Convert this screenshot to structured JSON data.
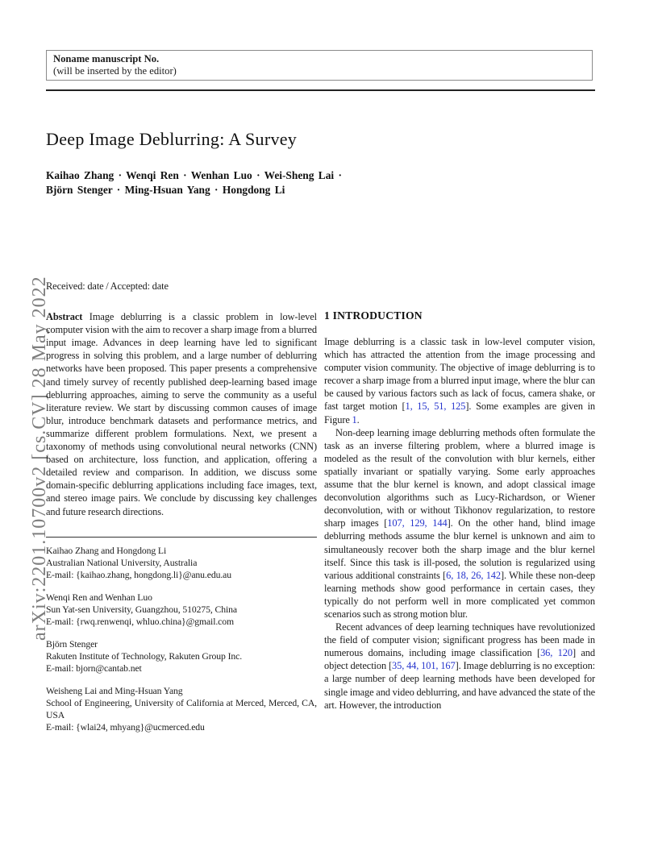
{
  "watermark": "arXiv:2201.10700v2 [cs.CV] 28 May 2022",
  "header_box": {
    "line1": "Noname manuscript No.",
    "line2": "(will be inserted by the editor)"
  },
  "title": "Deep Image Deblurring: A Survey",
  "author_lines": [
    "Kaihao Zhang · Wenqi Ren · Wenhan Luo · Wei-Sheng Lai ·",
    "Björn Stenger · Ming-Hsuan Yang · Hongdong Li"
  ],
  "received": "Received: date / Accepted: date",
  "abstract_paras": [
    [
      {
        "t": "Abstract",
        "s": "b"
      },
      {
        "t": " Image deblurring is a classic problem in low-level computer vision with the aim to recover a sharp image from a blurred input image. Advances in deep learning have led to significant progress in solving this problem, and a large number of deblurring networks have been proposed. This paper presents a comprehensive and timely survey of recently published deep-learning based image deblurring approaches, aiming to serve the community as a useful literature review. We start by discussing common causes of image blur, introduce benchmark datasets and performance metrics, and summarize different problem formulations. Next, we present a taxonomy of methods using convolutional neural networks (CNN) based on architecture, loss function, and application, offering a detailed review and comparison. In addition, we discuss some domain-specific deblurring applications including face images, text, and stereo image pairs. We conclude by discussing key challenges and future research directions."
      }
    ]
  ],
  "affiliations": [
    [
      "Kaihao Zhang and Hongdong Li",
      "Australian National University, Australia",
      "E-mail: {kaihao.zhang, hongdong.li}@anu.edu.au"
    ],
    [
      "Wenqi Ren and Wenhan Luo",
      "Sun Yat-sen University, Guangzhou, 510275, China",
      "E-mail: {rwq.renwenqi, whluo.china}@gmail.com"
    ],
    [
      "Björn Stenger",
      "Rakuten Institute of Technology, Rakuten Group Inc.",
      "E-mail: bjorn@cantab.net"
    ],
    [
      "Weisheng Lai and Ming-Hsuan Yang",
      "School of Engineering, University of California at Merced, Merced, CA, USA",
      "E-mail: {wlai24, mhyang}@ucmerced.edu"
    ]
  ],
  "section1": {
    "heading": "1 INTRODUCTION",
    "paragraphs": [
      [
        {
          "t": "Image deblurring is a classic task in low-level computer vision, which has attracted the attention from the image processing and computer vision community. The objective of image deblurring is to recover a sharp image from a blurred input image, where the blur can be caused by various factors such as lack of focus, camera shake, or fast target motion ["
        },
        {
          "t": "1, 15, 51, 125",
          "s": "cite"
        },
        {
          "t": "]. Some examples are given in Figure "
        },
        {
          "t": "1",
          "s": "cite"
        },
        {
          "t": "."
        }
      ],
      [
        {
          "t": "Non-deep learning image deblurring methods often formulate the task as an inverse filtering problem, where a blurred image is modeled as the result of the convolution with blur kernels, either spatially invariant or spatially varying. Some early approaches assume that the blur kernel is known, and adopt classical image deconvolution algorithms such as Lucy-Richardson, or Wiener deconvolution, with or without Tikhonov regularization, to restore sharp images ["
        },
        {
          "t": "107, 129, 144",
          "s": "cite"
        },
        {
          "t": "]. On the other hand, blind image deblurring methods assume the blur kernel is unknown and aim to simultaneously recover both the sharp image and the blur kernel itself. Since this task is ill-posed, the solution is regularized using various additional constraints ["
        },
        {
          "t": "6, 18, 26, 142",
          "s": "cite"
        },
        {
          "t": "]. While these non-deep learning methods show good performance in certain cases, they typically do not perform well in more complicated yet common scenarios such as strong motion blur."
        }
      ],
      [
        {
          "t": "Recent advances of deep learning techniques have revolutionized the field of computer vision; significant progress has been made in numerous domains, including image classification ["
        },
        {
          "t": "36, 120",
          "s": "cite"
        },
        {
          "t": "] and object detection ["
        },
        {
          "t": "35, 44, 101, 167",
          "s": "cite"
        },
        {
          "t": "]. Image deblurring is no exception: a large number of deep learning methods have been developed for single image and video deblurring, and have advanced the state of the art. However, the introduction"
        }
      ]
    ]
  },
  "colors": {
    "citation": "#2533cc",
    "watermark": "#7e7e7e"
  }
}
